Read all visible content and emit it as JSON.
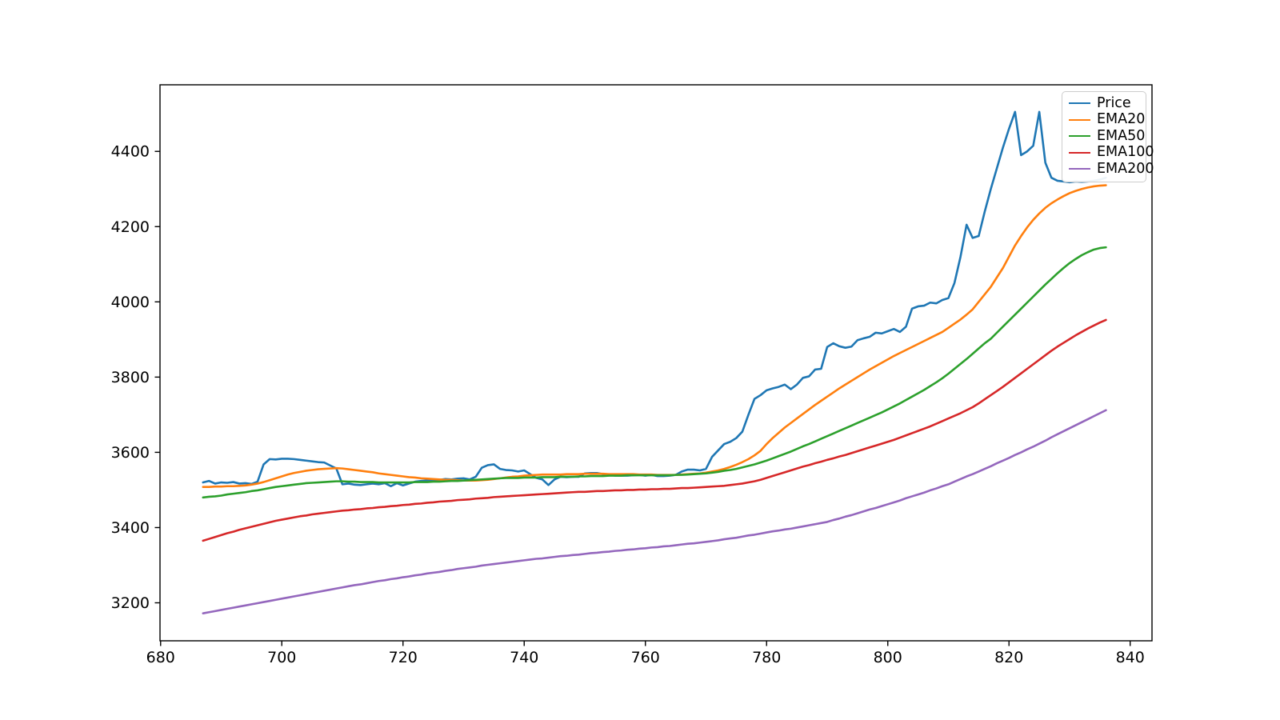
{
  "chart_data": {
    "type": "line",
    "title": "",
    "xlabel": "",
    "ylabel": "",
    "grid": false,
    "legend_position": "upper right",
    "background_color": "#ffffff",
    "axis_color": "#000000",
    "x_start": 687,
    "x_step": 1,
    "xlim": [
      679.9,
      843.6
    ],
    "ylim": [
      3099,
      4577
    ],
    "x_ticks": [
      680,
      700,
      720,
      740,
      760,
      780,
      800,
      820,
      840
    ],
    "y_ticks": [
      3200,
      3400,
      3600,
      3800,
      4000,
      4200,
      4400
    ],
    "series": [
      {
        "name": "Price",
        "color": "#1f77b4",
        "values": [
          3520,
          3524,
          3517,
          3520,
          3519,
          3521,
          3517,
          3518,
          3516,
          3522,
          3568,
          3582,
          3581,
          3583,
          3583,
          3582,
          3580,
          3578,
          3576,
          3574,
          3573,
          3565,
          3557,
          3515,
          3517,
          3514,
          3513,
          3515,
          3517,
          3515,
          3518,
          3510,
          3518,
          3512,
          3517,
          3522,
          3524,
          3525,
          3525,
          3527,
          3529,
          3528,
          3530,
          3531,
          3528,
          3535,
          3559,
          3566,
          3568,
          3556,
          3553,
          3552,
          3549,
          3552,
          3542,
          3532,
          3528,
          3513,
          3528,
          3535,
          3534,
          3535,
          3535,
          3544,
          3545,
          3545,
          3542,
          3541,
          3538,
          3538,
          3538,
          3539,
          3540,
          3538,
          3540,
          3537,
          3537,
          3538,
          3540,
          3549,
          3554,
          3554,
          3552,
          3556,
          3588,
          3605,
          3622,
          3628,
          3638,
          3655,
          3700,
          3742,
          3752,
          3765,
          3770,
          3774,
          3780,
          3768,
          3780,
          3798,
          3802,
          3820,
          3822,
          3880,
          3890,
          3882,
          3878,
          3881,
          3898,
          3903,
          3907,
          3918,
          3916,
          3922,
          3928,
          3920,
          3934,
          3982,
          3988,
          3990,
          3998,
          3996,
          4005,
          4010,
          4050,
          4120,
          4205,
          4170,
          4175,
          4240,
          4300,
          4355,
          4410,
          4460,
          4505,
          4390,
          4400,
          4415,
          4505,
          4370,
          4330,
          4322,
          4320,
          4318,
          4320,
          4319,
          4320,
          4322,
          4325,
          4330
        ]
      },
      {
        "name": "EMA20",
        "color": "#ff7f0e",
        "values": [
          3508,
          3508,
          3509,
          3509,
          3510,
          3510,
          3511,
          3512,
          3514,
          3517,
          3521,
          3526,
          3531,
          3536,
          3541,
          3545,
          3548,
          3551,
          3553,
          3555,
          3556,
          3557,
          3558,
          3557,
          3555,
          3553,
          3551,
          3549,
          3547,
          3544,
          3542,
          3540,
          3538,
          3536,
          3534,
          3533,
          3531,
          3530,
          3529,
          3528,
          3527,
          3527,
          3526,
          3525,
          3525,
          3525,
          3526,
          3527,
          3529,
          3531,
          3533,
          3535,
          3536,
          3538,
          3539,
          3540,
          3541,
          3541,
          3541,
          3541,
          3542,
          3542,
          3542,
          3543,
          3543,
          3543,
          3543,
          3542,
          3542,
          3542,
          3542,
          3542,
          3541,
          3541,
          3541,
          3540,
          3540,
          3540,
          3540,
          3541,
          3542,
          3543,
          3544,
          3546,
          3549,
          3552,
          3556,
          3561,
          3567,
          3574,
          3582,
          3592,
          3604,
          3622,
          3638,
          3652,
          3666,
          3678,
          3690,
          3702,
          3714,
          3726,
          3737,
          3748,
          3759,
          3770,
          3780,
          3790,
          3800,
          3810,
          3820,
          3829,
          3838,
          3847,
          3856,
          3864,
          3872,
          3880,
          3888,
          3896,
          3904,
          3912,
          3920,
          3931,
          3942,
          3953,
          3966,
          3980,
          4000,
          4020,
          4040,
          4065,
          4090,
          4120,
          4150,
          4175,
          4198,
          4218,
          4235,
          4250,
          4262,
          4272,
          4281,
          4289,
          4295,
          4300,
          4304,
          4307,
          4309,
          4310
        ]
      },
      {
        "name": "EMA50",
        "color": "#2ca02c",
        "values": [
          3480,
          3482,
          3483,
          3485,
          3488,
          3490,
          3492,
          3494,
          3497,
          3499,
          3502,
          3505,
          3508,
          3510,
          3512,
          3514,
          3516,
          3518,
          3519,
          3520,
          3521,
          3522,
          3523,
          3523,
          3522,
          3522,
          3521,
          3521,
          3521,
          3520,
          3520,
          3520,
          3520,
          3520,
          3520,
          3521,
          3521,
          3521,
          3522,
          3522,
          3523,
          3524,
          3524,
          3525,
          3526,
          3527,
          3528,
          3529,
          3530,
          3531,
          3532,
          3532,
          3532,
          3533,
          3533,
          3533,
          3534,
          3534,
          3534,
          3535,
          3535,
          3535,
          3536,
          3536,
          3537,
          3537,
          3537,
          3538,
          3538,
          3538,
          3539,
          3539,
          3539,
          3539,
          3539,
          3539,
          3539,
          3539,
          3540,
          3540,
          3541,
          3542,
          3543,
          3544,
          3546,
          3548,
          3551,
          3553,
          3556,
          3560,
          3564,
          3568,
          3573,
          3578,
          3584,
          3590,
          3596,
          3602,
          3609,
          3616,
          3622,
          3629,
          3636,
          3643,
          3650,
          3657,
          3664,
          3671,
          3678,
          3685,
          3692,
          3699,
          3706,
          3714,
          3722,
          3730,
          3739,
          3748,
          3757,
          3766,
          3776,
          3786,
          3797,
          3809,
          3822,
          3835,
          3848,
          3862,
          3876,
          3890,
          3902,
          3918,
          3934,
          3950,
          3966,
          3982,
          3998,
          4014,
          4030,
          4046,
          4061,
          4076,
          4090,
          4103,
          4114,
          4124,
          4132,
          4139,
          4143,
          4145
        ]
      },
      {
        "name": "EMA100",
        "color": "#d62728",
        "values": [
          3365,
          3370,
          3375,
          3380,
          3385,
          3389,
          3394,
          3398,
          3402,
          3406,
          3410,
          3414,
          3418,
          3421,
          3424,
          3427,
          3430,
          3432,
          3435,
          3437,
          3439,
          3441,
          3443,
          3445,
          3446,
          3448,
          3449,
          3451,
          3452,
          3454,
          3455,
          3457,
          3458,
          3460,
          3461,
          3463,
          3464,
          3466,
          3467,
          3469,
          3470,
          3471,
          3473,
          3474,
          3475,
          3477,
          3478,
          3479,
          3481,
          3482,
          3483,
          3484,
          3485,
          3486,
          3487,
          3488,
          3489,
          3490,
          3491,
          3492,
          3493,
          3494,
          3495,
          3495,
          3496,
          3497,
          3497,
          3498,
          3499,
          3499,
          3500,
          3500,
          3501,
          3501,
          3502,
          3502,
          3503,
          3503,
          3504,
          3505,
          3505,
          3506,
          3507,
          3508,
          3509,
          3510,
          3511,
          3513,
          3515,
          3517,
          3520,
          3523,
          3527,
          3532,
          3537,
          3542,
          3547,
          3552,
          3557,
          3562,
          3566,
          3571,
          3575,
          3580,
          3584,
          3589,
          3593,
          3598,
          3603,
          3608,
          3613,
          3618,
          3623,
          3628,
          3633,
          3639,
          3645,
          3651,
          3657,
          3663,
          3669,
          3676,
          3683,
          3690,
          3697,
          3704,
          3712,
          3720,
          3730,
          3741,
          3752,
          3763,
          3774,
          3786,
          3798,
          3810,
          3822,
          3834,
          3846,
          3858,
          3870,
          3881,
          3891,
          3901,
          3911,
          3920,
          3929,
          3937,
          3945,
          3952
        ]
      },
      {
        "name": "EMA200",
        "color": "#9467bd",
        "values": [
          3172,
          3175,
          3178,
          3181,
          3184,
          3187,
          3190,
          3193,
          3196,
          3199,
          3202,
          3205,
          3208,
          3211,
          3214,
          3217,
          3220,
          3223,
          3226,
          3229,
          3232,
          3235,
          3238,
          3241,
          3244,
          3247,
          3249,
          3252,
          3255,
          3258,
          3260,
          3263,
          3265,
          3268,
          3270,
          3273,
          3275,
          3278,
          3280,
          3282,
          3285,
          3287,
          3290,
          3292,
          3294,
          3296,
          3299,
          3301,
          3303,
          3305,
          3307,
          3309,
          3311,
          3313,
          3315,
          3317,
          3318,
          3320,
          3322,
          3324,
          3325,
          3327,
          3328,
          3330,
          3332,
          3333,
          3335,
          3336,
          3338,
          3339,
          3341,
          3342,
          3344,
          3345,
          3347,
          3348,
          3350,
          3351,
          3353,
          3355,
          3357,
          3358,
          3360,
          3362,
          3364,
          3366,
          3369,
          3371,
          3373,
          3376,
          3379,
          3381,
          3384,
          3387,
          3390,
          3392,
          3395,
          3397,
          3400,
          3403,
          3406,
          3409,
          3412,
          3415,
          3420,
          3424,
          3429,
          3433,
          3438,
          3443,
          3448,
          3452,
          3457,
          3462,
          3467,
          3472,
          3478,
          3483,
          3488,
          3493,
          3499,
          3504,
          3510,
          3515,
          3522,
          3529,
          3536,
          3542,
          3549,
          3556,
          3563,
          3571,
          3578,
          3585,
          3593,
          3600,
          3608,
          3615,
          3623,
          3631,
          3640,
          3648,
          3656,
          3664,
          3672,
          3680,
          3688,
          3696,
          3704,
          3712
        ]
      }
    ]
  }
}
